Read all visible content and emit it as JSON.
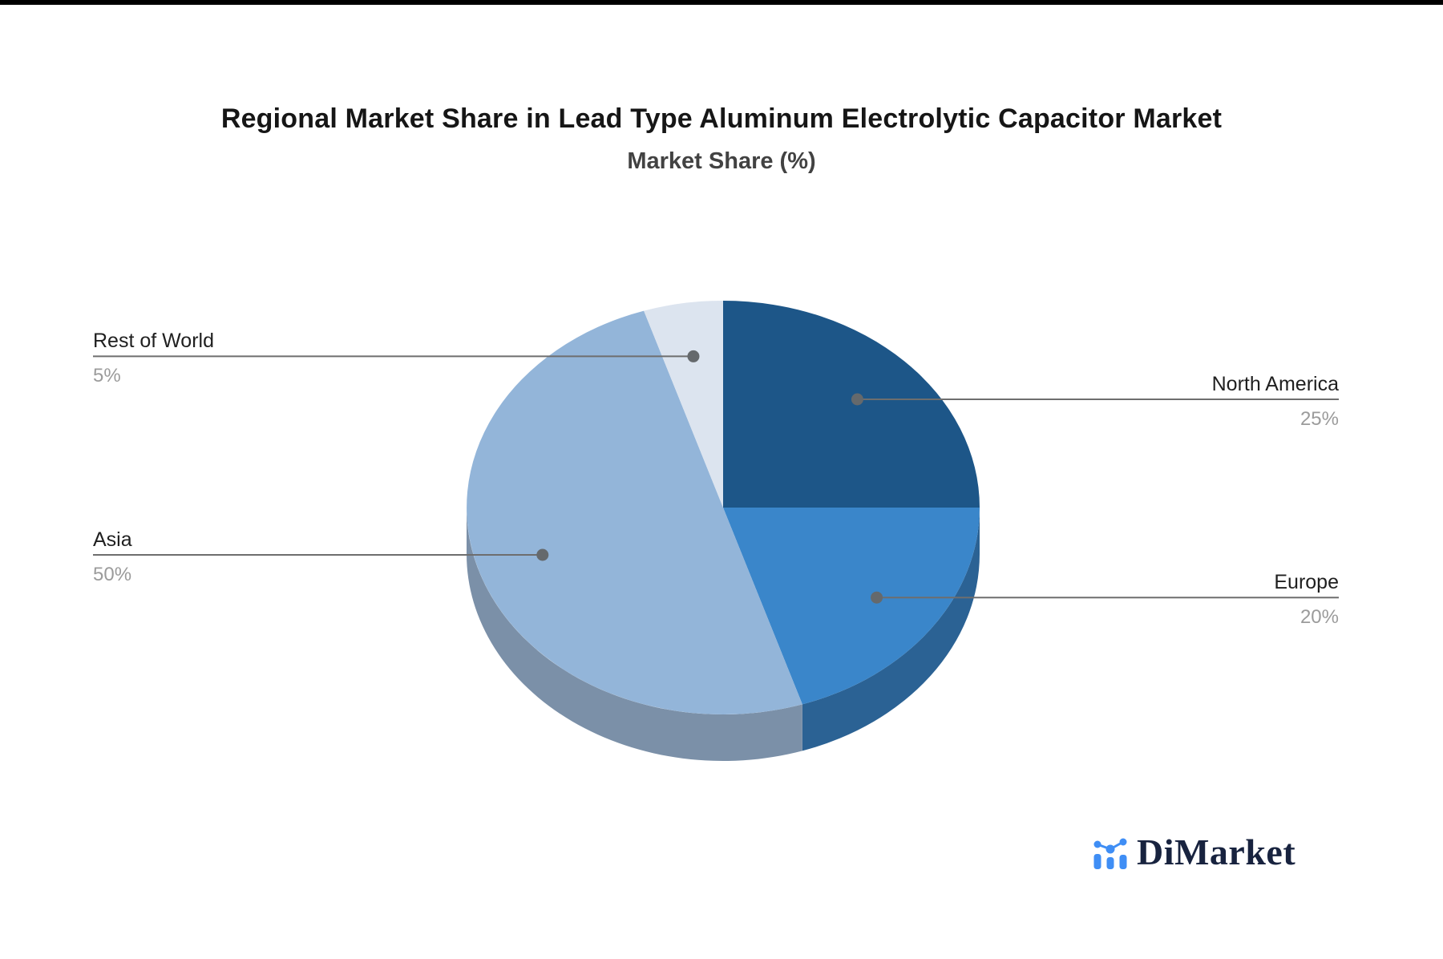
{
  "header": {
    "title": "Regional Market Share in Lead Type Aluminum Electrolytic Capacitor Market",
    "subtitle": "Market Share (%)"
  },
  "chart_data": {
    "type": "pie",
    "style": "3d-pie",
    "title": "Regional Market Share in Lead Type Aluminum Electrolytic Capacitor Market",
    "subtitle": "Market Share (%)",
    "unit": "%",
    "start_angle_deg": 0,
    "clockwise": true,
    "legend": "none",
    "background": "#ffffff",
    "categories": [
      "North America",
      "Europe",
      "Asia",
      "Rest of World"
    ],
    "values": [
      25,
      20,
      50,
      5
    ],
    "slices": [
      {
        "label": "North America",
        "value": 25,
        "pct_label": "25%",
        "color": "#1d5688",
        "side_color": "#1a4a76",
        "label_side": "right"
      },
      {
        "label": "Europe",
        "value": 20,
        "pct_label": "20%",
        "color": "#3a86ca",
        "side_color": "#2b6294",
        "label_side": "right"
      },
      {
        "label": "Asia",
        "value": 50,
        "pct_label": "50%",
        "color": "#93b5d9",
        "side_color": "#7b90a8",
        "label_side": "left"
      },
      {
        "label": "Rest of World",
        "value": 5,
        "pct_label": "5%",
        "color": "#dce4ef",
        "side_color": "#bcc8d8",
        "label_side": "left"
      }
    ],
    "callout_style": {
      "line_color": "#6e6e6e",
      "dot_color": "#65696c",
      "label_color": "#1f1f1f",
      "percent_color": "#9b9b9b"
    }
  },
  "branding": {
    "logo_text": "DiMarket",
    "logo_icon": "bar-line-chart-icon",
    "logo_text_color": "#18233f",
    "logo_icon_color": "#3f8ef5"
  }
}
